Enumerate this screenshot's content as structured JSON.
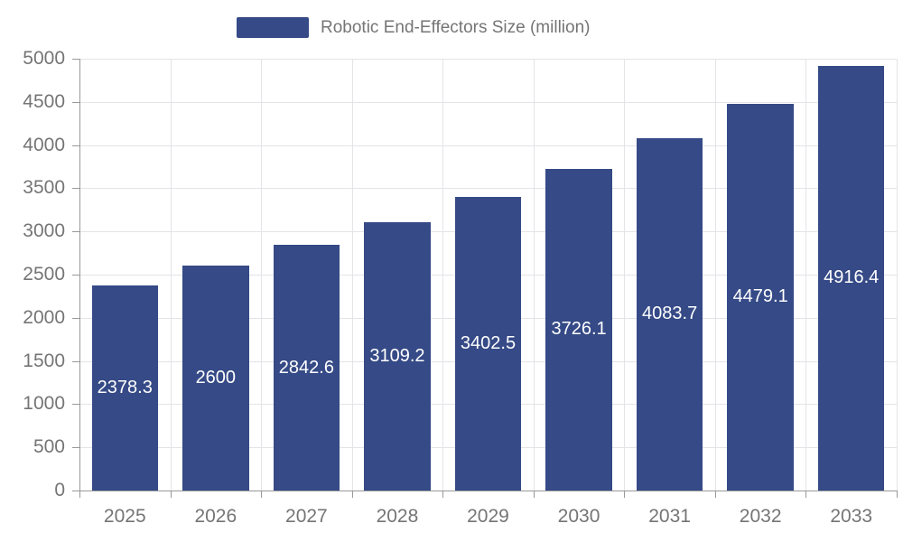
{
  "legend": {
    "label": "Robotic End-Effectors Size (million)"
  },
  "colors": {
    "background": "#ffffff",
    "bar": "#354a86",
    "grid": "#e4e4e8",
    "axis": "#999999",
    "tick_label": "#757575",
    "legend_label": "#757575",
    "bar_label": "#ffffff"
  },
  "chart_data": {
    "type": "bar",
    "title": "Robotic End-Effectors Size (million)",
    "series_name": "Robotic End-Effectors Size (million)",
    "categories": [
      "2025",
      "2026",
      "2027",
      "2028",
      "2029",
      "2030",
      "2031",
      "2032",
      "2033"
    ],
    "values": [
      2378.3,
      2600,
      2842.6,
      3109.2,
      3402.5,
      3726.1,
      4083.7,
      4479.1,
      4916.4
    ],
    "xlabel": "",
    "ylabel": "",
    "ylim": [
      0,
      5000
    ],
    "ytick_step": 500,
    "grid": true,
    "legend_position": "top",
    "bar_labels_shown": true,
    "bar_label_placement": "inside-center"
  }
}
